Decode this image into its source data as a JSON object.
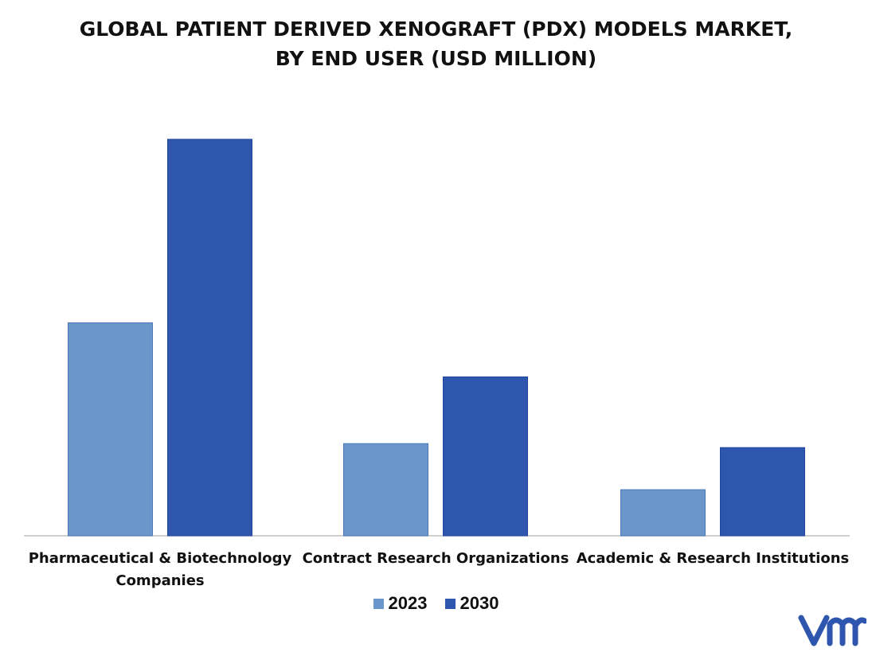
{
  "chart_data": {
    "type": "bar",
    "title_lines": [
      "GLOBAL PATIENT DERIVED XENOGRAFT (PDX) MODELS MARKET,",
      "BY END USER (USD MILLION)"
    ],
    "categories": [
      [
        "Pharmaceutical & Biotechnology",
        "Companies"
      ],
      [
        "Contract Research Organizations"
      ],
      [
        "Academic & Research Institutions"
      ]
    ],
    "series": [
      {
        "name": "2023",
        "color": "#6a96cb",
        "values": [
          268,
          116,
          58
        ]
      },
      {
        "name": "2030",
        "color": "#2e56ae",
        "values": [
          499,
          200,
          111
        ]
      }
    ],
    "ylim": [
      0,
      520
    ],
    "grid": false,
    "legend_position": "bottom"
  },
  "brand": {
    "logo_icon": "vmr-logo-icon",
    "logo_color": "#2e56ae"
  }
}
